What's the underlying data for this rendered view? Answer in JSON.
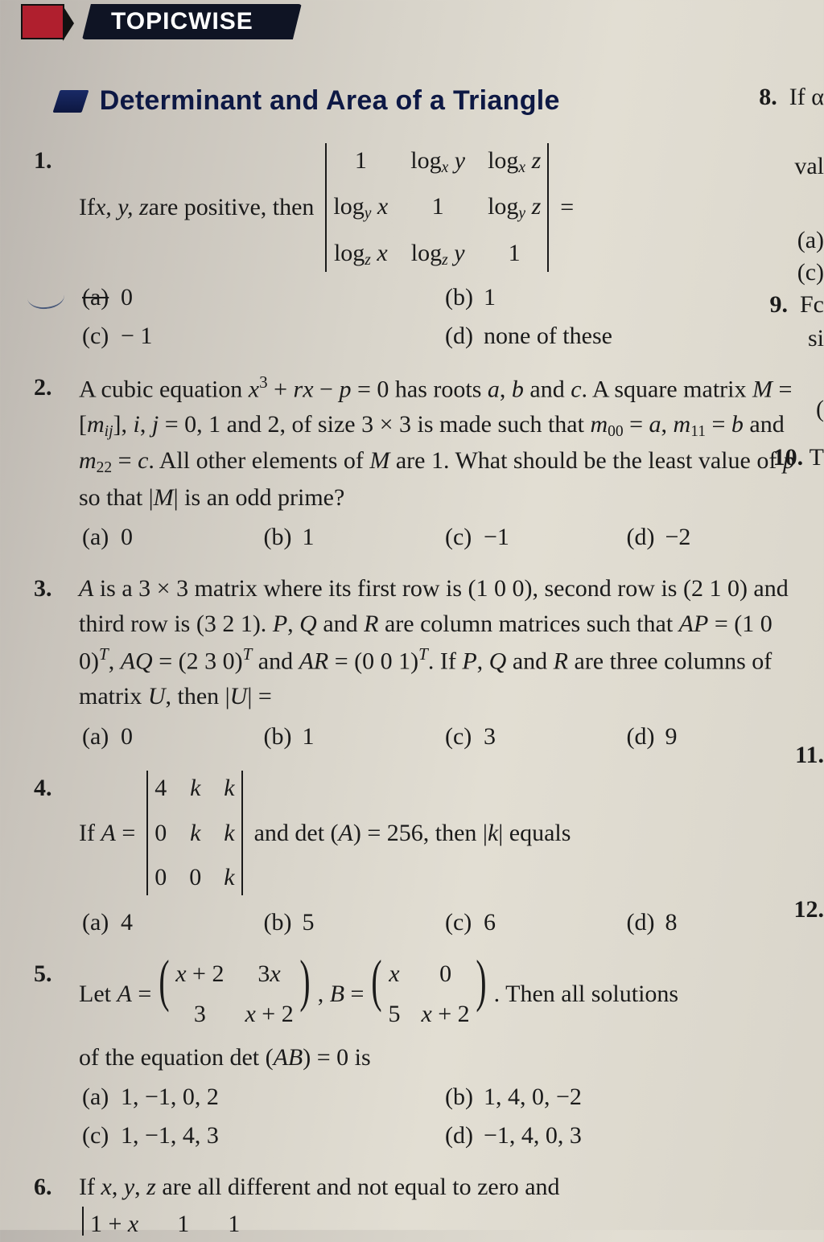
{
  "colors": {
    "text": "#1a1a1a",
    "title_navy": "#0d1844",
    "ribbon_bg": "#0f1424",
    "red_tab": "#b01f2e",
    "bullet_grad_top": "#192a66",
    "bullet_grad_bot": "#0d1740",
    "page_bg_left": "#b9b4ae",
    "page_bg_right": "#d9d5ca"
  },
  "typography": {
    "body_family": "Times New Roman",
    "body_size_pt": 30,
    "title_family": "Arial",
    "title_size_pt": 34,
    "title_weight": 900
  },
  "banner": {
    "ribbon_fragment": "TOPICWISE"
  },
  "section": {
    "title": "Determinant and Area of a Triangle"
  },
  "right_margin": {
    "n8": "8.",
    "n8_tail": "If α",
    "val": "val",
    "opa": "(a)",
    "opc": "(c)",
    "n9": "9.",
    "n9_tail": "Fc",
    "si": "si",
    "paren": "(",
    "n10": "10.",
    "n10_tail": "T",
    "n11": "11.",
    "n12": "12."
  },
  "q1": {
    "num": "1.",
    "lead": "If ",
    "vars": "x, y, z",
    "mid": " are positive, then ",
    "eq": " =",
    "det": {
      "rows": [
        [
          "1",
          "log<span class='sub italic'>x</span> <span class='italic'>y</span>",
          "log<span class='sub italic'>x</span> <span class='italic'>z</span>"
        ],
        [
          "log<span class='sub italic'>y</span> <span class='italic'>x</span>",
          "1",
          "log<span class='sub italic'>y</span> <span class='italic'>z</span>"
        ],
        [
          "log<span class='sub italic'>z</span> <span class='italic'>x</span>",
          "log<span class='sub italic'>z</span> <span class='italic'>y</span>",
          "1"
        ]
      ]
    },
    "opts": {
      "a_label": "(a)",
      "a": "0",
      "b_label": "(b)",
      "b": "1",
      "c_label": "(c)",
      "c": "− 1",
      "d_label": "(d)",
      "d": "none of these"
    }
  },
  "q2": {
    "num": "2.",
    "text": "A cubic equation <span class='italic'>x</span><span class='sup'>3</span> + <span class='italic'>rx</span> − <span class='italic'>p</span> = 0 has roots <span class='italic'>a</span>, <span class='italic'>b</span> and <span class='italic'>c</span>. A square matrix <span class='italic'>M</span> = [<span class='italic'>m<span class='sub'>ij</span></span>], <span class='italic'>i</span>, <span class='italic'>j</span> = 0, 1 and 2, of size 3 × 3 is made such that <span class='italic'>m</span><span class='sub'>00</span> = <span class='italic'>a</span>, <span class='italic'>m</span><span class='sub'>11</span> = <span class='italic'>b</span> and <span class='italic'>m</span><span class='sub'>22</span> = <span class='italic'>c</span>. All other elements of <span class='italic'>M</span> are 1. What should be the least value of <span class='italic'>p</span> so that |<span class='italic'>M</span>| is an odd prime?",
    "opts": {
      "a_label": "(a)",
      "a": "0",
      "b_label": "(b)",
      "b": "1",
      "c_label": "(c)",
      "c": "−1",
      "d_label": "(d)",
      "d": "−2"
    }
  },
  "q3": {
    "num": "3.",
    "text": "<span class='italic'>A</span> is a 3 × 3 matrix where its first row is (1 0 0), second row is (2 1 0) and third row is (3 2 1). <span class='italic'>P</span>, <span class='italic'>Q</span> and <span class='italic'>R</span> are column matrices such that <span class='italic'>AP</span> = (1 0 0)<span class='sup italic'>T</span>, <span class='italic'>AQ</span> = (2 3 0)<span class='sup italic'>T</span> and <span class='italic'>AR</span> = (0 0 1)<span class='sup italic'>T</span>. If <span class='italic'>P</span>, <span class='italic'>Q</span> and <span class='italic'>R</span> are three columns of matrix <span class='italic'>U</span>, then |<span class='italic'>U</span>| =",
    "opts": {
      "a_label": "(a)",
      "a": "0",
      "b_label": "(b)",
      "b": "1",
      "c_label": "(c)",
      "c": "3",
      "d_label": "(d)",
      "d": "9"
    }
  },
  "q4": {
    "num": "4.",
    "lead": "If <span class='italic'>A</span> = ",
    "det": {
      "rows": [
        [
          "4",
          "<span class='italic'>k</span>",
          "<span class='italic'>k</span>"
        ],
        [
          "0",
          "<span class='italic'>k</span>",
          "<span class='italic'>k</span>"
        ],
        [
          "0",
          "0",
          "<span class='italic'>k</span>"
        ]
      ]
    },
    "trail": " and det (<span class='italic'>A</span>) = 256, then |<span class='italic'>k</span>| equals",
    "opts": {
      "a_label": "(a)",
      "a": "4",
      "b_label": "(b)",
      "b": "5",
      "c_label": "(c)",
      "c": "6",
      "d_label": "(d)",
      "d": "8"
    }
  },
  "q5": {
    "num": "5.",
    "lead": "Let <span class='italic'>A</span> = ",
    "A": [
      [
        "<span class='italic'>x</span> + 2",
        "3<span class='italic'>x</span>"
      ],
      [
        "3",
        "<span class='italic'>x</span> + 2"
      ]
    ],
    "mid": ", <span class='italic'>B</span> = ",
    "B": [
      [
        "<span class='italic'>x</span>",
        "0"
      ],
      [
        "5",
        "<span class='italic'>x</span> + 2"
      ]
    ],
    "trail1": ". Then all solutions",
    "trail2": "of the equation det (<span class='italic'>AB</span>) = 0 is",
    "opts": {
      "a_label": "(a)",
      "a": "1, −1, 0, 2",
      "b_label": "(b)",
      "b": "1, 4, 0, −2",
      "c_label": "(c)",
      "c": "1, −1, 4, 3",
      "d_label": "(d)",
      "d": "−1, 4, 0, 3"
    }
  },
  "q6": {
    "num": "6.",
    "text": "If <span class='italic'>x</span>, <span class='italic'>y</span>, <span class='italic'>z</span> are all different and not equal to zero and",
    "frag_row": [
      "1 + <span class='italic'>x</span>",
      "1",
      "1"
    ]
  }
}
